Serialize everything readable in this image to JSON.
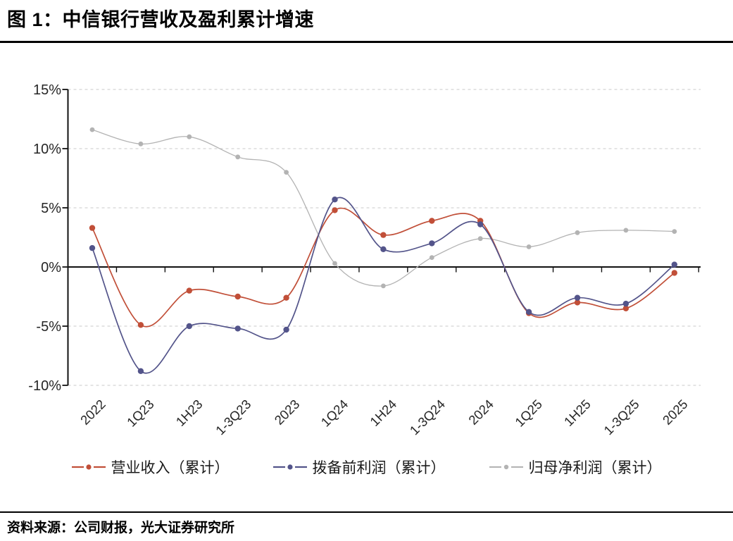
{
  "header": {
    "figure_title": "图 1：中信银行营收及盈利累计增速"
  },
  "footer": {
    "source": "资料来源：公司财报，光大证券研究所"
  },
  "chart_data": {
    "type": "line",
    "title": "中信银行营收及盈利累计增速",
    "categories": [
      "2022",
      "1Q23",
      "1H23",
      "1-3Q23",
      "2023",
      "1Q24",
      "1H24",
      "1-3Q24",
      "2024",
      "1Q25",
      "1H25",
      "1-3Q25",
      "2025"
    ],
    "series": [
      {
        "key": "revenue",
        "name": "营业收入（累计）",
        "color": "#c14f38",
        "line_width": 1.7,
        "marker_radius": 4.2,
        "values": [
          3.3,
          -4.9,
          -2.0,
          -2.5,
          -2.6,
          4.8,
          2.7,
          3.9,
          3.9,
          -3.9,
          -3.0,
          -3.5,
          -0.5
        ]
      },
      {
        "key": "pre-provision-profit",
        "name": "拨备前利润（累计）",
        "color": "#53548a",
        "line_width": 1.7,
        "marker_radius": 4.2,
        "values": [
          1.6,
          -8.8,
          -5.0,
          -5.2,
          -5.3,
          5.7,
          1.5,
          2.0,
          3.6,
          -3.8,
          -2.6,
          -3.1,
          0.2
        ]
      },
      {
        "key": "net-profit",
        "name": "归母净利润（累计）",
        "color": "#b3b3b3",
        "line_width": 1.3,
        "marker_radius": 3.4,
        "values": [
          11.6,
          10.4,
          11.0,
          9.3,
          8.0,
          0.3,
          -1.6,
          0.8,
          2.4,
          1.7,
          2.9,
          3.1,
          3.0
        ]
      }
    ],
    "ylim": [
      -10,
      15
    ],
    "yticks": {
      "values": [
        15,
        10,
        5,
        0,
        -5,
        -10
      ],
      "labels": [
        "15%",
        "10%",
        "5%",
        "0%",
        "-5%",
        "-10%"
      ]
    },
    "xlabel": "",
    "ylabel": "",
    "grid": "horizontal-dashed",
    "grid_color": "#c9c9c9",
    "axis_color": "#111111",
    "legend_position": "bottom",
    "x_label_rotation_deg": 45,
    "draw_order": [
      "net-profit",
      "revenue",
      "pre-provision-profit"
    ]
  }
}
